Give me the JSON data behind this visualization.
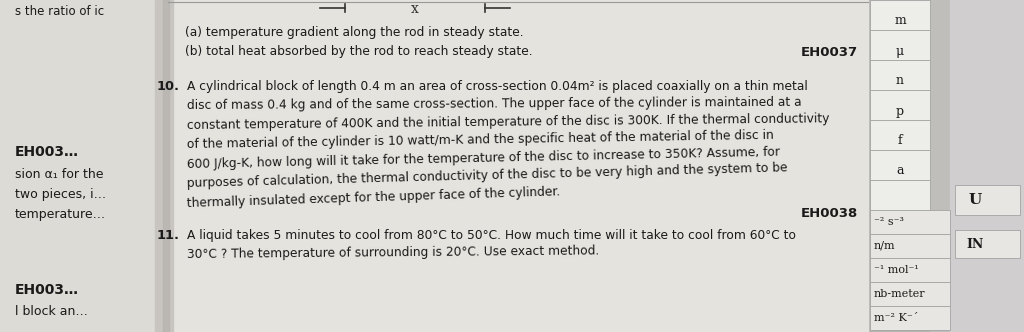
{
  "main_bg": "#c8c6c2",
  "page_color": "#e8e6e0",
  "left_page_color": "#f0eeea",
  "right_table_bg": "#e0dedd",
  "right_table_bg2": "#d8d6d2",
  "text_color": "#1a1a1a",
  "top_lines": [
    "(a) temperature gradient along the rod in steady state.",
    "(b) total heat absorbed by the rod to reach steady state."
  ],
  "eh0037": "EH0037",
  "eh0038": "EH0038",
  "q10_label": "10.",
  "q10_lines": [
    "A cylindrical block of length 0.4 m an area of cross-section 0.04m² is placed coaxially on a thin metal",
    "disc of mass 0.4 kg and of the same cross-section. The upper face of the cylinder is maintained at a",
    "constant temperature of 400K and the initial temperature of the disc is 300K. If the thermal conductivity",
    "of the material of the cylinder is 10 watt/m-K and the specific heat of the material of the disc in",
    "600 J/kg-K, how long will it take for the temperature of the disc to increase to 350K? Assume, for",
    "purposes of calculation, the thermal conductivity of the disc to be very high and the system to be",
    "thermally insulated except for the upper face of the cylinder."
  ],
  "q11_label": "11.",
  "q11_lines": [
    "A liquid takes 5 minutes to cool from 80°C to 50°C. How much time will it take to cool from 60°C to",
    "30°C ? The temperature of surrounding is 20°C. Use exact method."
  ],
  "left_texts": [
    [
      10,
      0,
      "s the ratio of ic"
    ],
    [
      10,
      140,
      "EH003…"
    ],
    [
      10,
      163,
      "sion α₁ for the"
    ],
    [
      10,
      183,
      "two pieces, i…"
    ],
    [
      10,
      203,
      "temperature…"
    ],
    [
      10,
      278,
      "EH003…"
    ],
    [
      10,
      300,
      "l block an…"
    ]
  ],
  "right_col1_items": [
    "m",
    "μ",
    "n",
    "p",
    "f",
    "a"
  ],
  "right_col2_items": [
    "⁻² s⁻³",
    "n/m",
    "⁻¹ mol⁻¹",
    "nb-meter",
    "m⁻² K⁻´"
  ],
  "right_col3_header": "U",
  "right_col3_items": [
    "IN"
  ],
  "figsize": [
    10.24,
    3.32
  ],
  "dpi": 100
}
